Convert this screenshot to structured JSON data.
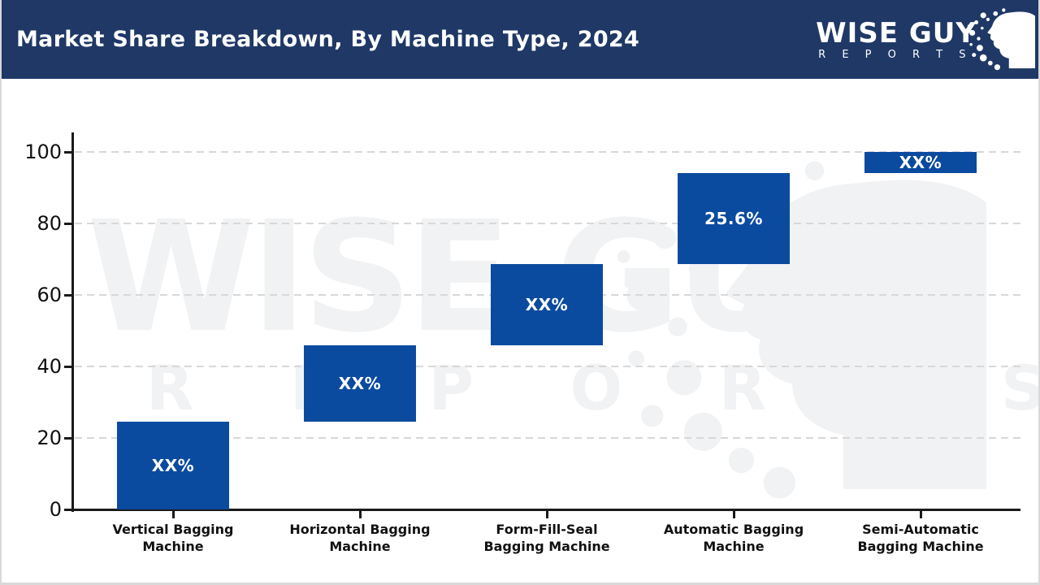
{
  "header": {
    "title": "Market Share Breakdown, By Machine Type, 2024",
    "logo": {
      "line1": "WISE GUY",
      "line2": "R E P O R T S"
    }
  },
  "watermark": {
    "line1": "WISE GUY",
    "line2": "R E P O R T S"
  },
  "chart_data": {
    "type": "bar",
    "subtype": "floating-segment-waterfall",
    "title": "Market Share Breakdown, By Machine Type, 2024",
    "categories": [
      "Vertical Bagging\nMachine",
      "Horizontal Bagging\nMachine",
      "Form-Fill-Seal\nBagging Machine",
      "Automatic Bagging\nMachine",
      "Semi-Automatic\nBagging Machine"
    ],
    "segments": [
      {
        "start": 0,
        "end": 24.5,
        "label": "XX%"
      },
      {
        "start": 24.5,
        "end": 46.0,
        "label": "XX%"
      },
      {
        "start": 46.0,
        "end": 68.6,
        "label": "XX%"
      },
      {
        "start": 68.6,
        "end": 94.2,
        "label": "25.6%"
      },
      {
        "start": 94.2,
        "end": 100.0,
        "label": "XX%"
      }
    ],
    "yticks": [
      0,
      20,
      40,
      60,
      80,
      100
    ],
    "ylim": [
      0,
      105
    ],
    "xlabel": "",
    "ylabel": "",
    "grid": "horizontal-dashed",
    "legend": "none"
  },
  "colors": {
    "header_bg": "#1F3866",
    "bar": "#0B4B9F",
    "bar_label": "#FFFFFF",
    "axis": "#1A1A1A",
    "grid": "#D8D8D8",
    "watermark": "#F1F2F4",
    "page_border": "#D9D9D9"
  }
}
